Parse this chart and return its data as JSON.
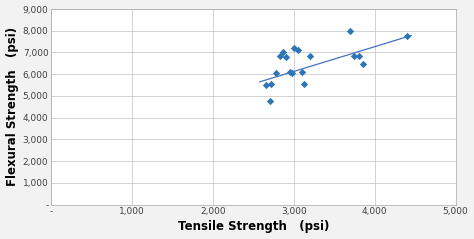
{
  "scatter_x": [
    2650,
    2700,
    2720,
    2780,
    2830,
    2870,
    2900,
    2950,
    2980,
    3000,
    3050,
    3100,
    3130,
    3200,
    3700,
    3750,
    3800,
    3850,
    4400
  ],
  "scatter_y": [
    5500,
    4750,
    5550,
    6050,
    6850,
    7000,
    6800,
    6100,
    6050,
    7200,
    7100,
    6100,
    5550,
    6850,
    8000,
    6850,
    6850,
    6450,
    7750
  ],
  "trendline_x": [
    2580,
    4450
  ],
  "trendline_y": [
    5650,
    7780
  ],
  "xlabel": "Tensile Strength   (psi)",
  "ylabel": "Flexural Strength   (psi)",
  "xlim": [
    0,
    5000
  ],
  "ylim": [
    0,
    9000
  ],
  "xticks": [
    0,
    1000,
    2000,
    3000,
    4000,
    5000
  ],
  "yticks": [
    0,
    1000,
    2000,
    3000,
    4000,
    5000,
    6000,
    7000,
    8000,
    9000
  ],
  "xtick_labels": [
    "-",
    "1,000",
    "2,000",
    "3,000",
    "4,000",
    "5,000"
  ],
  "ytick_labels": [
    "-",
    "1,000",
    "2,000",
    "3,000",
    "4,000",
    "5,000",
    "6,000",
    "7,000",
    "8,000",
    "9,000"
  ],
  "dot_color": "#2E75B6",
  "line_color": "#4472C4",
  "plot_bg": "#FFFFFF",
  "fig_bg": "#F2F2F2",
  "grid_color": "#C0C0C0",
  "spine_color": "#AAAAAA",
  "tick_label_color": "#404040",
  "axis_label_color": "#000000"
}
